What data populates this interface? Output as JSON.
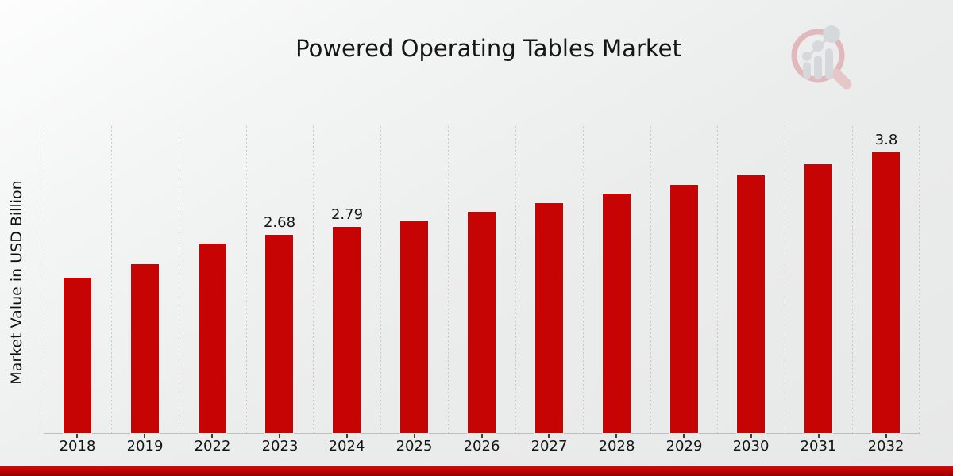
{
  "page": {
    "title": "Powered Operating Tables Market"
  },
  "chart_data": {
    "type": "bar",
    "title": "Powered Operating Tables Market",
    "xlabel": "",
    "ylabel": "Market Value in USD Billion",
    "categories": [
      "2018",
      "2019",
      "2022",
      "2023",
      "2024",
      "2025",
      "2026",
      "2027",
      "2028",
      "2029",
      "2030",
      "2031",
      "2032"
    ],
    "values": [
      2.1,
      2.28,
      2.56,
      2.68,
      2.79,
      2.87,
      2.99,
      3.11,
      3.24,
      3.36,
      3.49,
      3.63,
      3.8
    ],
    "value_labels": [
      "",
      "",
      "",
      "2.68",
      "2.79",
      "",
      "",
      "",
      "",
      "",
      "",
      "",
      "3.8"
    ],
    "bar_color": "#c70404",
    "ylim": [
      0,
      4.15
    ],
    "grid": "vertical-dotted",
    "legend": "none",
    "footer_accent_color": "#b30404"
  },
  "icons": {
    "logo": "mrfr-magnifier-chart-logo"
  }
}
